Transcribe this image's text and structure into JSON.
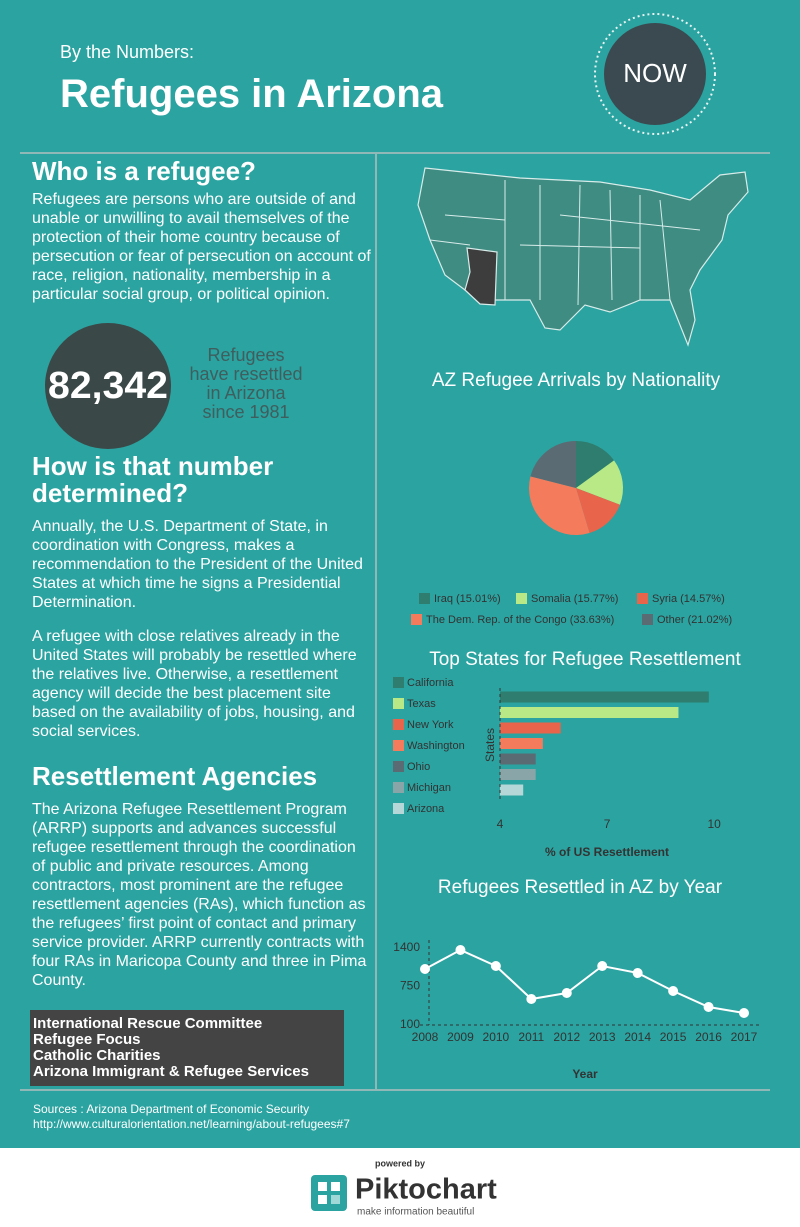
{
  "header": {
    "kicker": "By the Numbers:",
    "title": "Refugees in Arizona",
    "badge": "NOW"
  },
  "who": {
    "heading": "Who is a refugee?",
    "text": "Refugees are persons who are outside of and unable or unwilling to avail themselves of the protection of their home country because of persecution or fear of persecution on account of race, religion, nationality, membership in a particular social group, or political opinion."
  },
  "stat": {
    "number": "82,342",
    "caption": [
      "Refugees",
      "have resettled",
      "in Arizona",
      "since 1981"
    ]
  },
  "how": {
    "heading": "How is that number determined?",
    "paragraphs": [
      "Annually, the U.S. Department of State, in coordination with Congress, makes a recommendation to the President of the United States at which time he signs a Presidential Determination.",
      "A refugee with close relatives already in the United States will probably be resettled where the relatives live. Otherwise, a resettlement agency will decide the best placement site based on the availability of jobs, housing, and social services."
    ]
  },
  "agencies": {
    "heading": "Resettlement Agencies",
    "text": "The Arizona Refugee Resettlement Program (ARRP) supports and advances successful refugee resettlement through the coordination of public and private resources. Among contractors, most prominent are the refugee resettlement agencies (RAs), which function as the refugees’ first point of contact and primary service provider. ARRP currently contracts with four RAs in Maricopa County and three in Pima County.",
    "list": [
      "International Rescue Committee",
      "Refugee Focus",
      "Catholic Charities",
      "Arizona Immigrant & Refugee Services"
    ]
  },
  "sources": [
    "Sources : Arizona Department of Economic Security",
    "http://www.culturalorientation.net/learning/about-refugees#7"
  ],
  "footer": {
    "powered_by": "powered by",
    "brand": "Piktochart",
    "tagline": "make information beautiful"
  },
  "chart_data": [
    {
      "type": "pie",
      "title": "AZ Refugee Arrivals by Nationality",
      "categories": [
        "Iraq (15.01%)",
        "Somalia (15.77%)",
        "Syria (14.57%)",
        "The Dem. Rep. of the Congo (33.63%)",
        "Other (21.02%)"
      ],
      "values": [
        15.01,
        15.77,
        14.57,
        33.63,
        21.02
      ],
      "colors": [
        "#2e7d6e",
        "#b8e986",
        "#e8644a",
        "#f47c5c",
        "#5a6b73"
      ]
    },
    {
      "type": "bar",
      "orientation": "horizontal",
      "title": "Top States for Refugee Resettlement",
      "categories": [
        "California",
        "Texas",
        "New York",
        "Washington",
        "Ohio",
        "Michigan",
        "Arizona"
      ],
      "values": [
        9.85,
        9.0,
        5.7,
        5.2,
        5.0,
        5.0,
        4.65
      ],
      "colors": [
        "#2e7d6e",
        "#b8e986",
        "#e8644a",
        "#f47c5c",
        "#5a6b73",
        "#8aa5a8",
        "#b6d7d8"
      ],
      "xlim": [
        4,
        10.5
      ],
      "xticks": [
        4,
        7,
        10
      ],
      "xlabel": "% of US Resettlement",
      "ylabel": "States"
    },
    {
      "type": "line",
      "title": "Refugees Resettled in AZ by Year",
      "x": [
        2008,
        2009,
        2010,
        2011,
        2012,
        2013,
        2014,
        2015,
        2016,
        2017
      ],
      "values": [
        1045,
        1366,
        1096,
        539,
        640,
        1096,
        978,
        674,
        404,
        303
      ],
      "color": "#ffffff",
      "xlim": [
        2008,
        2017
      ],
      "ylim": [
        100,
        1400
      ],
      "yticks": [
        100,
        750,
        1400
      ],
      "xlabel": "Year"
    }
  ]
}
